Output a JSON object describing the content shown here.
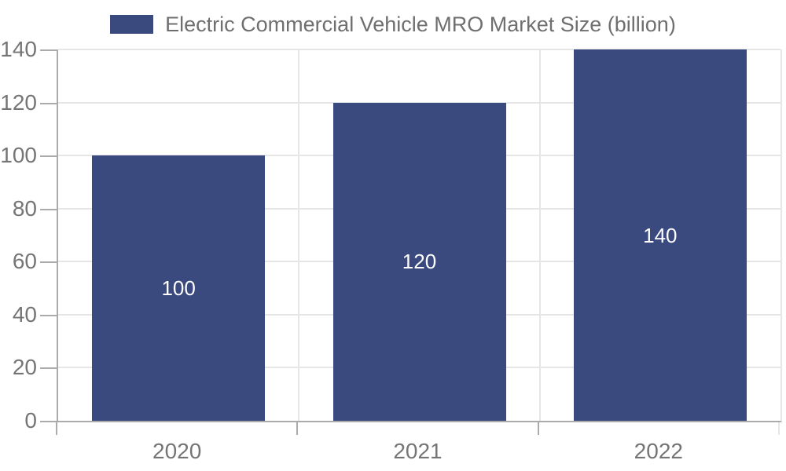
{
  "chart_data": {
    "type": "bar",
    "series_name": "Electric Commercial Vehicle MRO Market Size (billion)",
    "categories": [
      "2020",
      "2021",
      "2022"
    ],
    "values": [
      100,
      120,
      140
    ],
    "bar_labels": [
      "100",
      "120",
      "140"
    ],
    "title": "",
    "xlabel": "",
    "ylabel": "",
    "ylim": [
      0,
      140
    ],
    "yticks": [
      0,
      20,
      40,
      60,
      80,
      100,
      120,
      140
    ],
    "grid": true,
    "legend_position": "top-center",
    "colors": {
      "bar": "#3a4a7e",
      "grid": "#e6e6e6",
      "axis": "#ababab",
      "tick_text": "#757575",
      "legend_text": "#6f6f6f",
      "bar_label_text": "#ffffff",
      "background": "#ffffff"
    }
  }
}
